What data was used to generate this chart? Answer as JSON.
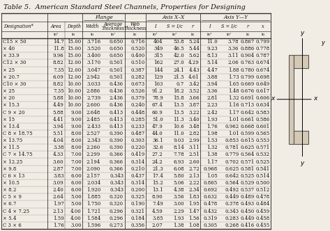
{
  "title": "Table 5.  American Standard Steel Channels, Properties for Designing",
  "headers_row1": [
    "",
    "",
    "",
    "Flange",
    "",
    "Web",
    "Axis X–X",
    "",
    "",
    "Axis Y—Y",
    "",
    "",
    ""
  ],
  "headers_row2": [
    "Designation*",
    "Area",
    "Depth",
    "Width",
    "Average\nThickness",
    "Thickness",
    "I",
    "S = I/c",
    "r",
    "I",
    "S = I/c",
    "r",
    "x"
  ],
  "units": [
    "",
    "in²",
    "in",
    "in",
    "in¹",
    "in",
    "in⁴",
    "in³",
    "in",
    "in⁴",
    "in³",
    "in",
    "in"
  ],
  "rows": [
    [
      "C15 × 50",
      "14.7",
      "15.00",
      "3.716",
      "0.650",
      "0.716",
      "404",
      "53.8",
      "5.24",
      "11.0",
      "3.78",
      "0.867",
      "0.799"
    ],
    [
      "× 40",
      "11.8",
      "15.00",
      "3.520",
      "0.650",
      "0.520",
      "349",
      "46.5",
      "5.44",
      "9.23",
      "3.36",
      "0.886",
      "0.778"
    ],
    [
      "× 33.9",
      "9.96",
      "15.00",
      "3.400",
      "0.650",
      "0.400",
      "315",
      "42.0",
      "5.62",
      "8.13",
      "3.11",
      "0.904",
      "0.787"
    ],
    [
      "C12 × 30",
      "8.82",
      "12.00",
      "3.170",
      "0.501",
      "0.510",
      "162",
      "27.0",
      "4.29",
      "5.14",
      "2.06",
      "0.763",
      "0.674"
    ],
    [
      "× 25",
      "7.35",
      "12.00",
      "3.047",
      "0.501",
      "0.387",
      "144",
      "24.1",
      "4.43",
      "4.47",
      "1.88",
      "0.780",
      "0.674"
    ],
    [
      "× 20.7",
      "6.09",
      "12.00",
      "2.942",
      "0.501",
      "0.282",
      "129",
      "21.5",
      "4.61",
      "3.88",
      "1.73",
      "0.799",
      "0.698"
    ],
    [
      "C10 × 30",
      "8.82",
      "10.00",
      "3.033",
      "0.436",
      "0.673",
      "103",
      "0.7",
      "3.42",
      "3.94",
      "1.65",
      "0.669",
      "0.649"
    ],
    [
      "× 25",
      "7.35",
      "10.00",
      "2.886",
      "0.436",
      "0.526",
      "91.2",
      "18.2",
      "3.52",
      "3.36",
      "1.48",
      "0.676",
      "0.617"
    ],
    [
      "× 20",
      "5.88",
      "10.00",
      "2.739",
      "2.436",
      "0.379",
      "78.9",
      "15.8",
      "3.66",
      "2.81",
      "1.32",
      "0.691",
      "0.606"
    ],
    [
      "× 15.3",
      "4.49",
      "10.00",
      "2.600",
      "0.436",
      "0.240",
      "67.4",
      "13.5",
      "3.87",
      "2.23",
      "1.16",
      "0.713",
      "0.634"
    ],
    [
      "C 9 × 20",
      "5.88",
      "9.00",
      "2.648",
      "0.413",
      "0.448",
      "60.9",
      "13.5",
      "3.22",
      "2.42",
      "1.17",
      "0.642",
      "0.583"
    ],
    [
      "× 15",
      "4.41",
      "9.00",
      "2.485",
      "0.413",
      "0.285",
      "51.0",
      "11.3",
      "3.40",
      "1.93",
      "1.01",
      "0.661",
      "0.586"
    ],
    [
      "× 13.4",
      "3.94",
      "9.00",
      "2.433",
      "0.413",
      "0.233",
      "47.9",
      "10.6",
      "3.48",
      "1.76",
      "0.962",
      "0.668",
      "0.601"
    ],
    [
      "C 8 × 18.75",
      "5.51",
      "8.00",
      "2.527",
      "0.390",
      "0.487",
      "44.0",
      "11.0",
      "2.82",
      "1.98",
      "1.01",
      "0.599",
      "0.565"
    ],
    [
      "× 13.75",
      "4.04",
      "8.00",
      "2.343",
      "0.390",
      "0.303",
      "36.1",
      "9.03",
      "2.99",
      "1.53",
      "0.853",
      "0.615",
      "0.553"
    ],
    [
      "× 11.5",
      "3.38",
      "8.00",
      "2.260",
      "0.390",
      "0.220",
      "32.6",
      "8.14",
      "3.11",
      "1.32",
      "0.781",
      "0.625",
      "0.571"
    ],
    [
      "C 7 × 14.75",
      "4.33",
      "7.00",
      "2.299",
      "0.366",
      "0.419",
      "27.2",
      "7.78",
      "2.51",
      "1.38",
      "0.779",
      "0.564",
      "0.532"
    ],
    [
      "× 12.25",
      "3.60",
      "7.00",
      "2.194",
      "0.366",
      "0.314",
      "24.2",
      "6.93",
      "2.60",
      "1.17",
      "0.702",
      "0.571",
      "0.525"
    ],
    [
      "× 9.8",
      "2.87",
      "7.00",
      "2.090",
      "0.366",
      "0.210",
      "21.3",
      "6.08",
      "2.72",
      "0.968",
      "0.625",
      "0.581",
      "0.541"
    ],
    [
      "C 6 × 13",
      "3.83",
      "6.00",
      "2.157",
      "0.343",
      "0.437",
      "17.4",
      "5.80",
      "2.13",
      "1.05",
      "0.642",
      "0.525",
      "0.514"
    ],
    [
      "× 10.5",
      "3.09",
      "6.00",
      "2.034",
      "0.343",
      "0.314",
      "15.2",
      "5.06",
      "2.22",
      "0.865",
      "0.564",
      "0.529",
      "0.500"
    ],
    [
      "× 8.2",
      "2.40",
      "6.00",
      "1.920",
      "0.343",
      "0.200",
      "13.1",
      "4.38",
      "2.34",
      "0.692",
      "0.492",
      "0.537",
      "0.512"
    ],
    [
      "C 5 × 9",
      "2.64",
      "5.00",
      "1.885",
      "0.320",
      "0.325",
      "8.90",
      "3.56",
      "1.83",
      "0.632",
      "0.449",
      "0.489",
      "0.478"
    ],
    [
      "× 6.7",
      "1.97",
      "5.00",
      "1.750",
      "0.320",
      "0.190",
      "7.49",
      "3.00",
      "1.95",
      "0.478",
      "0.378",
      "0.493",
      "0.484"
    ],
    [
      "C 4 × 7.25",
      "2.13",
      "4.00",
      "1.721",
      "0.296",
      "0.321",
      "4.59",
      "2.29",
      "1.47",
      "0.432",
      "0.343",
      "0.450",
      "0.459"
    ],
    [
      "× 5.4",
      "1.59",
      "4.00",
      "1.584",
      "0.296",
      "0.184",
      "3.85",
      "1.93",
      "1.56",
      "0.319",
      "0.283",
      "0.449",
      "0.458"
    ],
    [
      "C 3 × 6",
      "1.76",
      "3.00",
      "1.596",
      "0.273",
      "0.356",
      "2.07",
      "1.38",
      "1.08",
      "0.305",
      "0.268",
      "0.416",
      "0.455"
    ]
  ],
  "bg_color": "#f2ede4",
  "line_color": "#333333",
  "font_size": 5.0,
  "title_font_size": 7.0
}
